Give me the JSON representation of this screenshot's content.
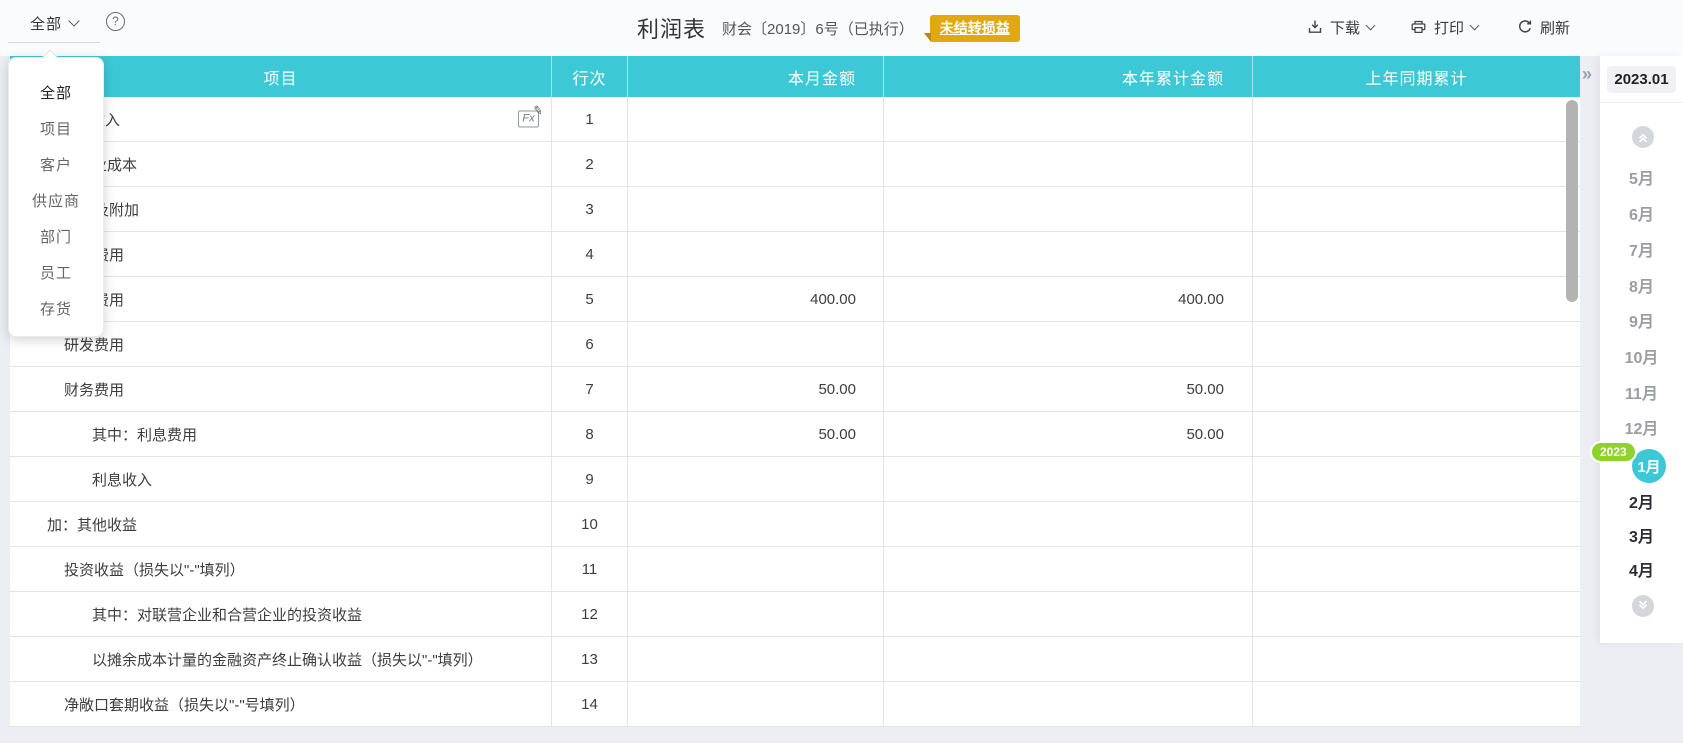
{
  "toolbar": {
    "filter_label": "全部",
    "help_label": "?",
    "title": "利润表",
    "subtitle": "财会〔2019〕6号（已执行）",
    "badge": "未结转损益",
    "download_label": "下载",
    "print_label": "打印",
    "refresh_label": "刷新"
  },
  "filter_dropdown": {
    "selected": "全部",
    "items": [
      "全部",
      "项目",
      "客户",
      "供应商",
      "部门",
      "员工",
      "存货"
    ]
  },
  "table": {
    "columns": [
      "项目",
      "行次",
      "本月金额",
      "本年累计金额",
      "上年同期累计"
    ],
    "rows": [
      {
        "item": "一、营业收入",
        "line": "1",
        "month": "",
        "ytd": "",
        "prior": "",
        "indent": 0,
        "fx": true
      },
      {
        "item": "减：营业成本",
        "line": "2",
        "month": "",
        "ytd": "",
        "prior": "",
        "indent": 1,
        "fx": false
      },
      {
        "item": "税金及附加",
        "line": "3",
        "month": "",
        "ytd": "",
        "prior": "",
        "indent": 2,
        "fx": false
      },
      {
        "item": "销售费用",
        "line": "4",
        "month": "",
        "ytd": "",
        "prior": "",
        "indent": 2,
        "fx": false
      },
      {
        "item": "管理费用",
        "line": "5",
        "month": "400.00",
        "ytd": "400.00",
        "prior": "",
        "indent": 2,
        "fx": false
      },
      {
        "item": "研发费用",
        "line": "6",
        "month": "",
        "ytd": "",
        "prior": "",
        "indent": 2,
        "fx": false
      },
      {
        "item": "财务费用",
        "line": "7",
        "month": "50.00",
        "ytd": "50.00",
        "prior": "",
        "indent": 2,
        "fx": false
      },
      {
        "item": "其中：利息费用",
        "line": "8",
        "month": "50.00",
        "ytd": "50.00",
        "prior": "",
        "indent": 3,
        "fx": false
      },
      {
        "item": "利息收入",
        "line": "9",
        "month": "",
        "ytd": "",
        "prior": "",
        "indent": 3,
        "fx": false
      },
      {
        "item": "加：其他收益",
        "line": "10",
        "month": "",
        "ytd": "",
        "prior": "",
        "indent": 1,
        "fx": false
      },
      {
        "item": "投资收益（损失以\"-\"填列）",
        "line": "11",
        "month": "",
        "ytd": "",
        "prior": "",
        "indent": 2,
        "fx": false
      },
      {
        "item": "其中：对联营企业和合营企业的投资收益",
        "line": "12",
        "month": "",
        "ytd": "",
        "prior": "",
        "indent": 3,
        "fx": false
      },
      {
        "item": "以摊余成本计量的金融资产终止确认收益（损失以\"-\"填列）",
        "line": "13",
        "month": "",
        "ytd": "",
        "prior": "",
        "indent": 3,
        "fx": false
      },
      {
        "item": "净敞口套期收益（损失以\"-\"号填列）",
        "line": "14",
        "month": "",
        "ytd": "",
        "prior": "",
        "indent": 2,
        "fx": false
      }
    ]
  },
  "period": {
    "current_period": "2023.01",
    "year_badge": "2023",
    "months_prev_year": [
      "5月",
      "6月",
      "7月",
      "8月",
      "9月",
      "10月",
      "11月",
      "12月"
    ],
    "active_month": "1月",
    "months_current_year": [
      "2月",
      "3月",
      "4月"
    ]
  },
  "colors": {
    "accent_teal": "#3dc8d6",
    "badge_gold": "#e2a713",
    "year_badge_green": "#8fd32a",
    "page_background": "#eceef3"
  }
}
